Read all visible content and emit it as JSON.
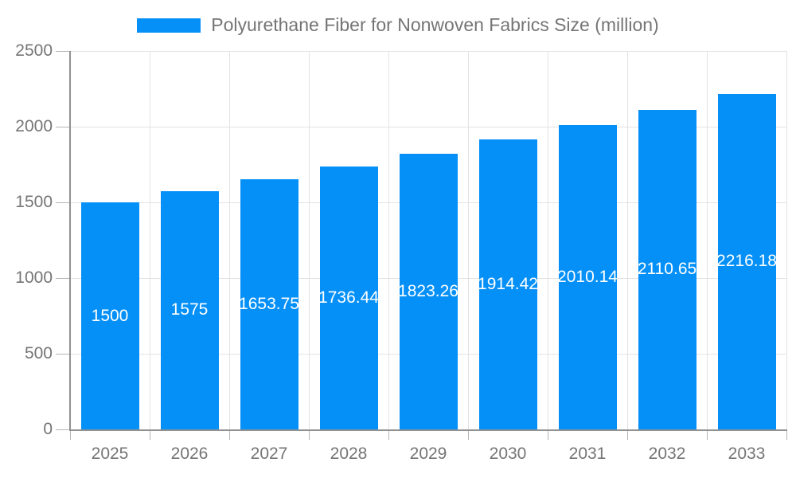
{
  "chart_data": {
    "type": "bar",
    "title": "Polyurethane Fiber for Nonwoven Fabrics Size (million)",
    "categories": [
      "2025",
      "2026",
      "2027",
      "2028",
      "2029",
      "2030",
      "2031",
      "2032",
      "2033"
    ],
    "values": [
      1500,
      1575,
      1653.75,
      1736.44,
      1823.26,
      1914.42,
      2010.14,
      2110.65,
      2216.18
    ],
    "value_labels": [
      "1500",
      "1575",
      "1653.75",
      "1736.44",
      "1823.26",
      "1914.42",
      "2010.14",
      "2110.65",
      "2216.18"
    ],
    "xlabel": "",
    "ylabel": "",
    "y_ticks": [
      0,
      500,
      1000,
      1500,
      2000,
      2500
    ],
    "ylim": [
      0,
      2500
    ],
    "grid": true,
    "legend_position": "top-center",
    "colors": {
      "bar": "#0590f8",
      "grid": "#e3e3e3",
      "axis": "#919191",
      "tick_mark": "#b5b5b5",
      "axis_label": "#757575",
      "value_label": "#ffffff",
      "background": "#ffffff"
    }
  }
}
